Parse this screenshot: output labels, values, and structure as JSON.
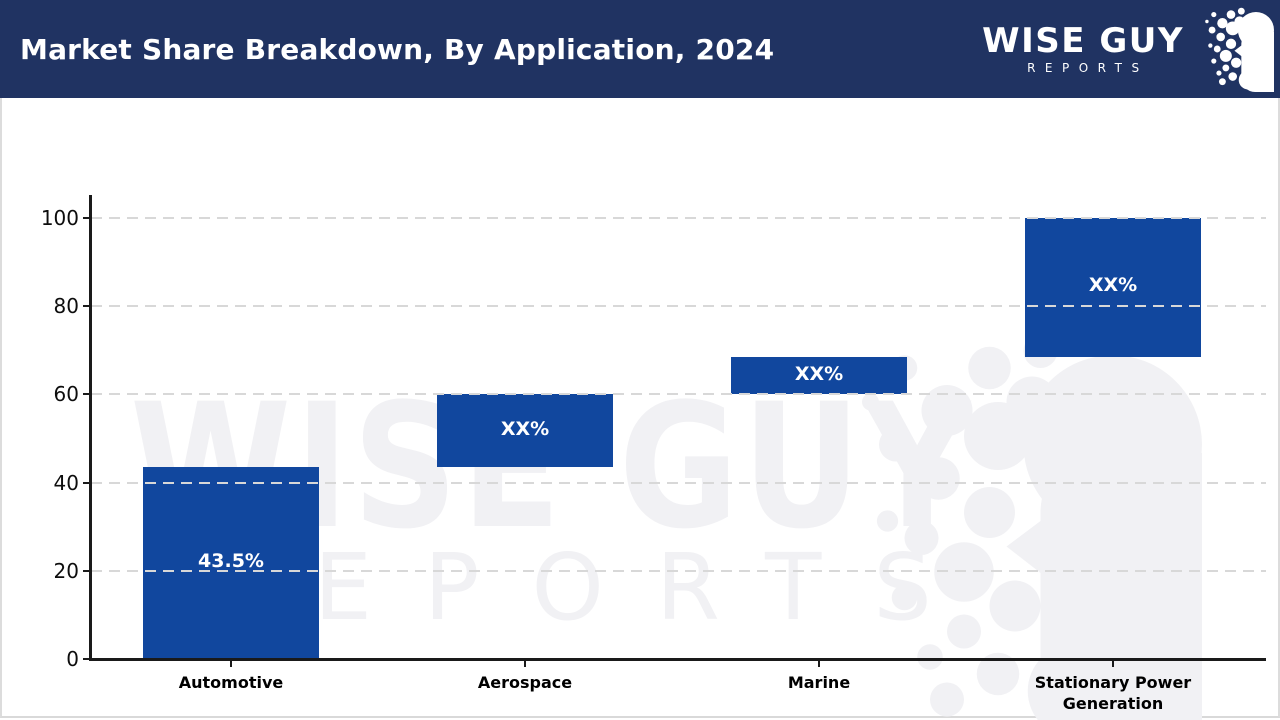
{
  "header": {
    "title": "Market Share Breakdown, By Application, 2024",
    "logo": {
      "name": "WISE GUY",
      "subname": "REPORTS"
    }
  },
  "watermark": {
    "line1": "WISE GUY",
    "line2": "REPORTS"
  },
  "chart_data": {
    "type": "bar",
    "subtype": "waterfall",
    "title": "Market Share Breakdown, By Application, 2024",
    "categories": [
      "Automotive",
      "Aerospace",
      "Marine",
      "Stationary Power Generation"
    ],
    "segments": [
      {
        "category": "Automotive",
        "start": 0,
        "end": 43.5,
        "label": "43.5%"
      },
      {
        "category": "Aerospace",
        "start": 43.5,
        "end": 60,
        "label": "XX%"
      },
      {
        "category": "Marine",
        "start": 60,
        "end": 68.5,
        "label": "XX%"
      },
      {
        "category": "Stationary Power Generation",
        "start": 68.5,
        "end": 100,
        "label": "XX%"
      }
    ],
    "xlabel": "",
    "ylabel": "",
    "ylim": [
      0,
      100
    ],
    "yticks": [
      0,
      20,
      40,
      60,
      80,
      100
    ],
    "grid": "horizontal-dashed",
    "legend": "none",
    "colors": {
      "bar": "#11479e",
      "bar_label": "#ffffff",
      "grid": "#d8d8d8",
      "axis": "#1a1a1a",
      "header_bg": "#203362",
      "watermark": "#f1f1f4"
    }
  }
}
